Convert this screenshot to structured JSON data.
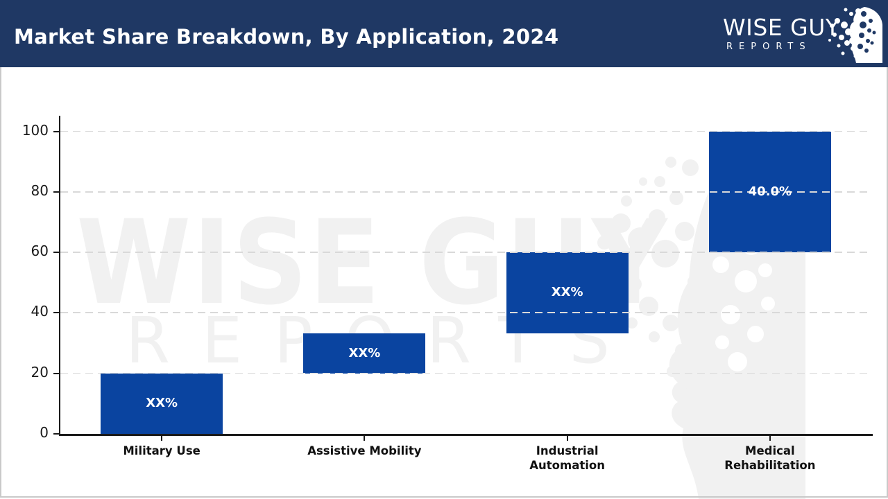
{
  "header": {
    "title": "Market Share Breakdown, By Application, 2024",
    "brand": {
      "name": "WISE GUY",
      "tagline": "REPORTS"
    }
  },
  "watermark": {
    "brand": "WISE GUY",
    "tagline": "REPORTS"
  },
  "icons": {
    "brand_head": "dotted-head-profile",
    "watermark_head": "dotted-head-profile"
  },
  "colors": {
    "header_bg": "#1f3864",
    "bar": "#0a44a0",
    "grid": "#d9d9d9",
    "axis": "#1a1a1a",
    "tick_label": "#1a1a1a",
    "bar_label": "#ffffff",
    "watermark": "#f1f1f1"
  },
  "chart_data": {
    "type": "bar",
    "subtype": "waterfall",
    "title": "Market Share Breakdown, By Application, 2024",
    "categories": [
      "Military Use",
      "Assistive Mobility",
      "Industrial Automation",
      "Medical Rehabilitation"
    ],
    "category_label_lines": [
      [
        "Military Use"
      ],
      [
        "Assistive Mobility"
      ],
      [
        "Industrial",
        "Automation"
      ],
      [
        "Medical",
        "Rehabilitation"
      ]
    ],
    "bars": [
      {
        "category": "Military Use",
        "label": "XX%",
        "start": 0,
        "end": 20,
        "value": 20
      },
      {
        "category": "Assistive Mobility",
        "label": "XX%",
        "start": 20,
        "end": 33.3,
        "value": 13.3
      },
      {
        "category": "Industrial Automation",
        "label": "XX%",
        "start": 33.3,
        "end": 60,
        "value": 26.7
      },
      {
        "category": "Medical Rehabilitation",
        "label": "40.0%",
        "start": 60,
        "end": 100,
        "value": 40
      }
    ],
    "xlabel": "",
    "ylabel": "",
    "ylim": [
      0,
      105
    ],
    "yticks": [
      0,
      20,
      40,
      60,
      80,
      100
    ],
    "grid": "horizontal-dashed",
    "legend": "none"
  }
}
